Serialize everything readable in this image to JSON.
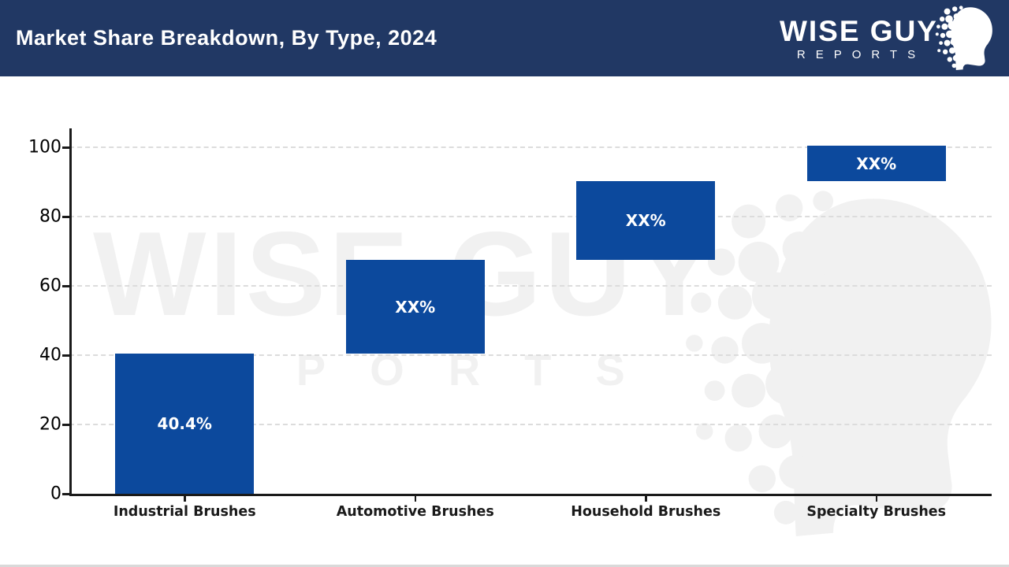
{
  "header": {
    "title": "Market Share Breakdown, By Type, 2024",
    "logo": {
      "line1": "WISE GUY",
      "line2": "REPORTS"
    }
  },
  "watermark": {
    "line1": "WISE GUY",
    "line2": "REPORTS"
  },
  "chart_data": {
    "type": "bar",
    "subtype": "waterfall-floating-segments",
    "title": "Market Share Breakdown, By Type, 2024",
    "categories": [
      "Industrial Brushes",
      "Automotive Brushes",
      "Household Brushes",
      "Specialty Brushes"
    ],
    "segments": [
      {
        "category": "Industrial Brushes",
        "start": 0,
        "end": 40.4,
        "label": "40.4%"
      },
      {
        "category": "Automotive Brushes",
        "start": 40.4,
        "end": 67.5,
        "label": "XX%"
      },
      {
        "category": "Household Brushes",
        "start": 67.5,
        "end": 90.2,
        "label": "XX%"
      },
      {
        "category": "Specialty Brushes",
        "start": 90.2,
        "end": 100.4,
        "label": "XX%"
      }
    ],
    "xlabel": "",
    "ylabel": "",
    "yticks": [
      0,
      20,
      40,
      60,
      80,
      100
    ],
    "ylim": [
      0,
      105
    ],
    "grid": "horizontal-dashed",
    "legend": "none"
  },
  "colors": {
    "header_bg": "#213864",
    "bar": "#0c499d",
    "bar_label": "#ffffff",
    "axis": "#1a1a1a",
    "gridline": "#dcdcdc",
    "watermark": "#f1f1f1",
    "title_text": "#ffffff"
  }
}
